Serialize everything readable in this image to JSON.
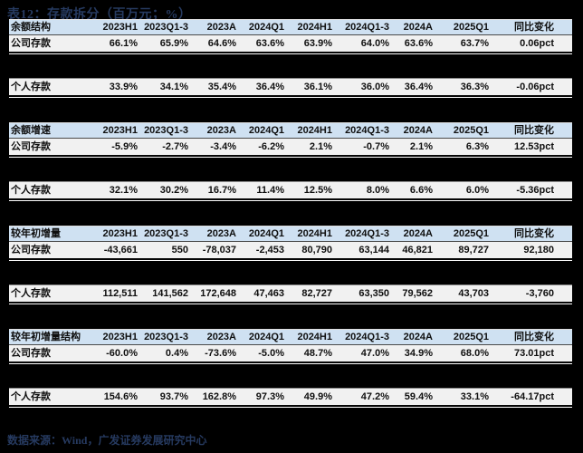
{
  "page": {
    "title": "表12：存款拆分（百万元；%）",
    "source": "数据来源：Wind，广发证券发展研究中心"
  },
  "colors": {
    "background": "#000000",
    "header_band": "#cfe1f2",
    "row_band": "#f1f1f1",
    "title_text": "#263a60",
    "body_text": "#0f0f0f"
  },
  "table": {
    "columns": [
      "2023H1",
      "2023Q1-3",
      "2023A",
      "2024Q1",
      "2024H1",
      "2024Q1-3",
      "2024A",
      "2025Q1",
      "同比变化"
    ],
    "sections": [
      {
        "title": "余额结构",
        "rows": [
          {
            "label": "公司存款",
            "values": [
              "66.1%",
              "65.9%",
              "64.6%",
              "63.6%",
              "63.9%",
              "64.0%",
              "63.6%",
              "63.7%",
              "0.06pct"
            ]
          },
          {
            "label": "个人存款",
            "values": [
              "33.9%",
              "34.1%",
              "35.4%",
              "36.4%",
              "36.1%",
              "36.0%",
              "36.4%",
              "36.3%",
              "-0.06pct"
            ]
          }
        ]
      },
      {
        "title": "余额增速",
        "rows": [
          {
            "label": "公司存款",
            "values": [
              "-5.9%",
              "-2.7%",
              "-3.4%",
              "-6.2%",
              "2.1%",
              "-0.7%",
              "2.1%",
              "6.3%",
              "12.53pct"
            ]
          },
          {
            "label": "个人存款",
            "values": [
              "32.1%",
              "30.2%",
              "16.7%",
              "11.4%",
              "12.5%",
              "8.0%",
              "6.6%",
              "6.0%",
              "-5.36pct"
            ]
          }
        ]
      },
      {
        "title": "较年初增量",
        "rows": [
          {
            "label": "公司存款",
            "values": [
              "-43,661",
              "550",
              "-78,037",
              "-2,453",
              "80,790",
              "63,144",
              "46,821",
              "89,727",
              "92,180"
            ]
          },
          {
            "label": "个人存款",
            "values": [
              "112,511",
              "141,562",
              "172,648",
              "47,463",
              "82,727",
              "63,350",
              "79,562",
              "43,703",
              "-3,760"
            ]
          }
        ]
      },
      {
        "title": "较年初增量结构",
        "rows": [
          {
            "label": "公司存款",
            "values": [
              "-60.0%",
              "0.4%",
              "-73.6%",
              "-5.0%",
              "48.7%",
              "47.0%",
              "34.9%",
              "68.0%",
              "73.01pct"
            ]
          },
          {
            "label": "个人存款",
            "values": [
              "154.6%",
              "93.7%",
              "162.8%",
              "97.3%",
              "49.9%",
              "47.2%",
              "59.4%",
              "33.1%",
              "-64.17pct"
            ]
          }
        ]
      }
    ]
  }
}
